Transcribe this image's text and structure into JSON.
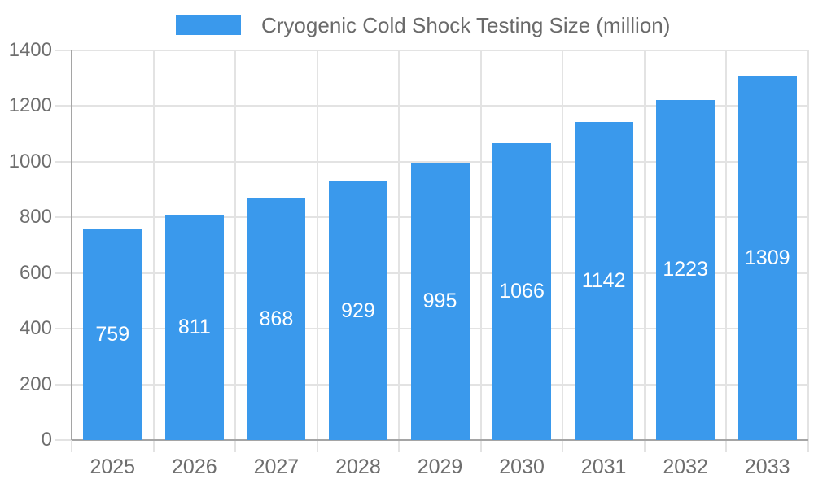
{
  "chart_data": {
    "type": "bar",
    "title": "Cryogenic Cold Shock Testing Size (million)",
    "categories": [
      "2025",
      "2026",
      "2027",
      "2028",
      "2029",
      "2030",
      "2031",
      "2032",
      "2033"
    ],
    "values": [
      759,
      811,
      868,
      929,
      995,
      1066,
      1142,
      1223,
      1309
    ],
    "xlabel": "",
    "ylabel": "",
    "ylim": [
      0,
      1400
    ],
    "yticks": [
      0,
      200,
      400,
      600,
      800,
      1000,
      1200,
      1400
    ],
    "grid": true,
    "legend_position": "top-center",
    "value_label_position": "inside-center"
  },
  "legend": {
    "label": "Cryogenic Cold Shock Testing Size (million)"
  },
  "colors": {
    "bar": "#3A99EC",
    "grid": "#e3e3e3",
    "axis": "#a5a5a5",
    "tick_label": "#6e6e6e",
    "legend_text": "#6a6a6a",
    "value_label": "#ffffff",
    "background": "#ffffff"
  }
}
